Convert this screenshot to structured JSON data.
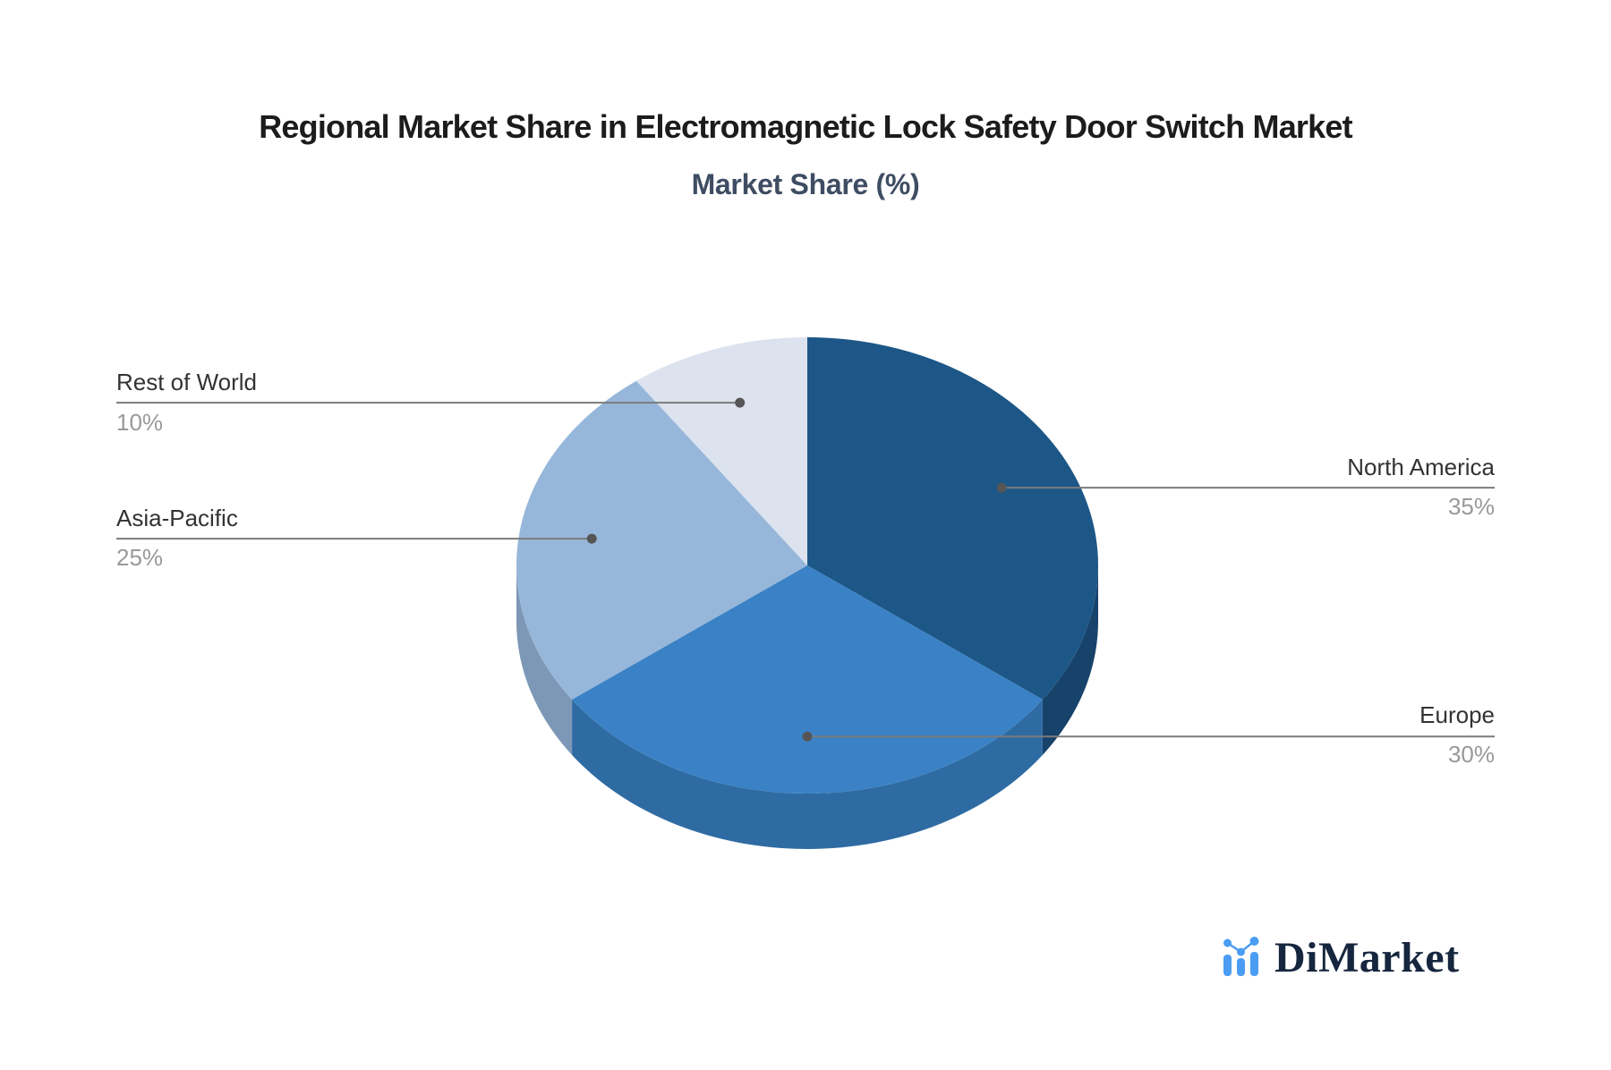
{
  "title": "Regional Market Share in Electromagnetic Lock Safety Door Switch Market",
  "subtitle": "Market Share (%)",
  "chart_data": {
    "type": "pie",
    "style": "3d",
    "title": "Regional Market Share in Electromagnetic Lock Safety Door Switch Market",
    "subtitle": "Market Share (%)",
    "unit": "%",
    "start_angle_deg": -90,
    "direction": "clockwise",
    "legend_position": "none",
    "labels": "leader-lines",
    "slices": [
      {
        "label": "North America",
        "value": 35,
        "value_label": "35%",
        "color": "#1d5787",
        "side_color": "#17426a",
        "label_side": "right"
      },
      {
        "label": "Europe",
        "value": 30,
        "value_label": "30%",
        "color": "#3a82c5",
        "side_color": "#2f6ba3",
        "label_side": "right"
      },
      {
        "label": "Asia-Pacific",
        "value": 25,
        "value_label": "25%",
        "color": "#97b7da",
        "side_color": "#7d98b6",
        "label_side": "left"
      },
      {
        "label": "Rest of World",
        "value": 10,
        "value_label": "10%",
        "color": "#dce3ee",
        "side_color": "#c3cddd",
        "label_side": "left"
      }
    ],
    "leader_line_color": "#7b7b7b",
    "leader_dot_color": "#555555",
    "label_color": "#333333",
    "value_color": "#999999"
  },
  "logo": {
    "text": "DiMarket",
    "icon": "bar-chart-trend-icon",
    "icon_color": "#4a9df3",
    "text_color": "#16263e"
  }
}
